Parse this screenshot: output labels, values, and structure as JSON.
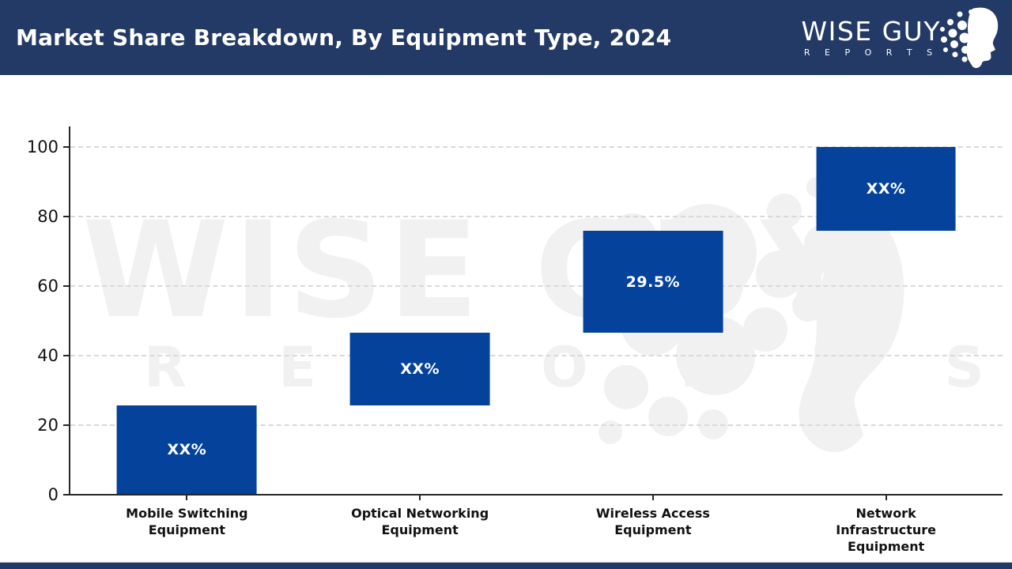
{
  "header": {
    "title": "Market Share Breakdown, By Equipment Type, 2024",
    "logo": {
      "primary": "WISE GUY",
      "secondary": "R E P O R T S"
    }
  },
  "watermark": {
    "primary": "WISE GUY",
    "secondary": "R E P O R T S"
  },
  "colors": {
    "header_navy": "#233a66",
    "bar_blue": "#04429c",
    "watermark_gray": "#f1f1f2",
    "gridline_gray": "#d9d9d9",
    "axis_dark": "#262626",
    "bar_label_white": "#ffffff"
  },
  "chart_data": {
    "type": "bar",
    "variant": "waterfall-floating-segments",
    "title": "Market Share Breakdown, By Equipment Type, 2024",
    "xlabel": "",
    "ylabel": "",
    "ylim": [
      0,
      100
    ],
    "yticks": [
      0,
      20,
      40,
      60,
      80,
      100
    ],
    "grid": "horizontal-dashed",
    "legend": "none",
    "categories": [
      {
        "name": "Mobile Switching Equipment",
        "lines": [
          "Mobile Switching",
          "Equipment"
        ]
      },
      {
        "name": "Optical Networking Equipment",
        "lines": [
          "Optical Networking",
          "Equipment"
        ]
      },
      {
        "name": "Wireless Access Equipment",
        "lines": [
          "Wireless Access",
          "Equipment"
        ]
      },
      {
        "name": "Network Infrastructure Equipment",
        "lines": [
          "Network",
          "Infrastructure",
          "Equipment"
        ]
      }
    ],
    "series": [
      {
        "name": "Market Share",
        "segments": [
          {
            "start": 0,
            "end": 25.7,
            "label": "XX%"
          },
          {
            "start": 25.7,
            "end": 46.5,
            "label": "XX%"
          },
          {
            "start": 46.5,
            "end": 76,
            "label": "29.5%"
          },
          {
            "start": 76,
            "end": 100,
            "label": "XX%"
          }
        ]
      }
    ]
  }
}
